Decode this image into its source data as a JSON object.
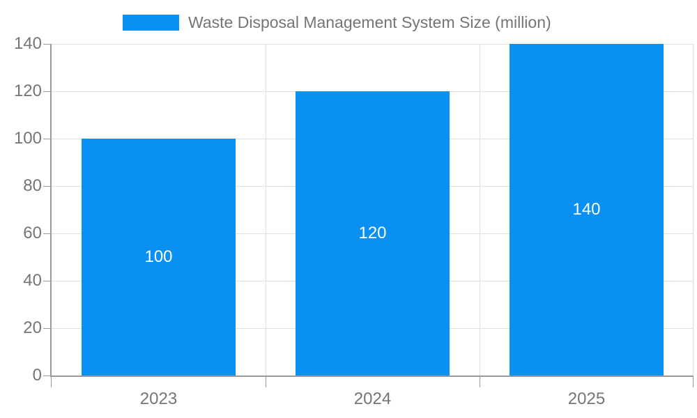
{
  "chart_data": {
    "type": "bar",
    "title": "Waste Disposal Management System Size (million)",
    "categories": [
      "2023",
      "2024",
      "2025"
    ],
    "series": [
      {
        "name": "Waste Disposal Management System Size (million)",
        "values": [
          100,
          120,
          140
        ]
      }
    ],
    "bar_value_labels": [
      "100",
      "120",
      "140"
    ],
    "xlabel": "",
    "ylabel": "",
    "ylim": [
      0,
      140
    ],
    "ytick_step": 20,
    "yticks": [
      0,
      20,
      40,
      60,
      80,
      100,
      120,
      140
    ],
    "grid": true,
    "legend_position": "top",
    "colors": {
      "bar": "#0a90f2",
      "grid": "#e0e0e0",
      "axis": "#999999",
      "tick_text": "#757575",
      "legend_text": "#757575",
      "bar_label_text": "#ffffff",
      "background": "#ffffff"
    }
  }
}
